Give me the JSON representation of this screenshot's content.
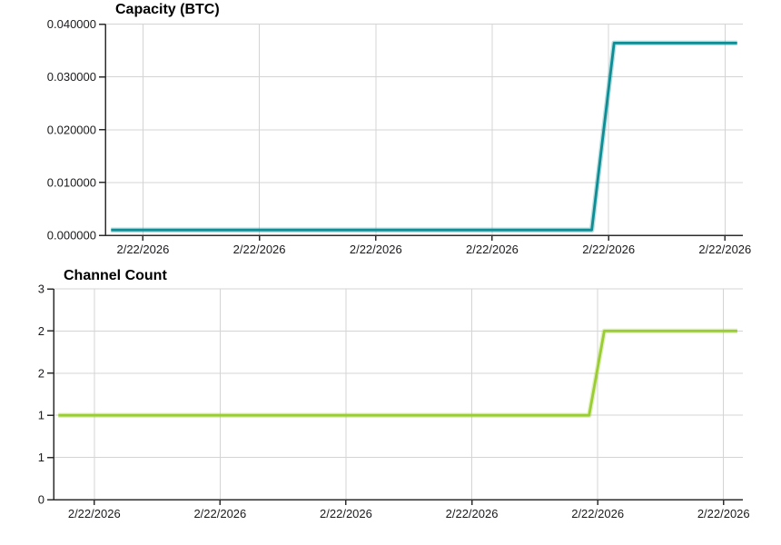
{
  "window": {
    "background": "#ffffff"
  },
  "colors": {
    "gridline": "#d4d4d4",
    "axis": "#2d2d2d",
    "tick_text": "#1a1a1e",
    "title_text": "#000000",
    "capacity_line": "#0e8d95",
    "channel_line": "#9acd32"
  },
  "chart_data": [
    {
      "type": "line",
      "title": "Capacity (BTC)",
      "xlabel": "",
      "ylabel": "",
      "x_axis": {
        "unit": "date",
        "tick_labels": [
          "2/22/2026",
          "2/22/2026",
          "2/22/2026",
          "2/22/2026",
          "2/22/2026",
          "2/22/2026"
        ]
      },
      "y_axis": {
        "min": 0,
        "max": 0.04,
        "ticks": [
          {
            "value": 0.04,
            "label": "0.040000"
          },
          {
            "value": 0.03,
            "label": "0.030000"
          },
          {
            "value": 0.02,
            "label": "0.020000"
          },
          {
            "value": 0.01,
            "label": "0.010000"
          },
          {
            "value": 0.0,
            "label": "0.000000"
          }
        ]
      },
      "grid": true,
      "legend": "none",
      "series": [
        {
          "name": "capacity-btc",
          "color": "#0e8d95",
          "points": [
            {
              "x": 0.009,
              "y": 0.001
            },
            {
              "x": 0.763,
              "y": 0.001
            },
            {
              "x": 0.798,
              "y": 0.0364
            },
            {
              "x": 0.991,
              "y": 0.0364
            }
          ]
        }
      ]
    },
    {
      "type": "line",
      "title": "Channel Count",
      "xlabel": "",
      "ylabel": "",
      "x_axis": {
        "unit": "date",
        "tick_labels": [
          "2/22/2026",
          "2/22/2026",
          "2/22/2026",
          "2/22/2026",
          "2/22/2026",
          "2/22/2026"
        ]
      },
      "y_axis": {
        "min": 0,
        "max": 2.5,
        "ticks": [
          {
            "value": 2.5,
            "label": "3"
          },
          {
            "value": 2.0,
            "label": "2"
          },
          {
            "value": 1.5,
            "label": "2"
          },
          {
            "value": 1.0,
            "label": "1"
          },
          {
            "value": 0.5,
            "label": "1"
          },
          {
            "value": 0.0,
            "label": "0"
          }
        ]
      },
      "grid": true,
      "legend": "none",
      "series": [
        {
          "name": "channel-count",
          "color": "#9acd32",
          "points": [
            {
              "x": 0.007,
              "y": 1
            },
            {
              "x": 0.777,
              "y": 1
            },
            {
              "x": 0.799,
              "y": 2
            },
            {
              "x": 0.992,
              "y": 2
            }
          ]
        }
      ]
    }
  ]
}
